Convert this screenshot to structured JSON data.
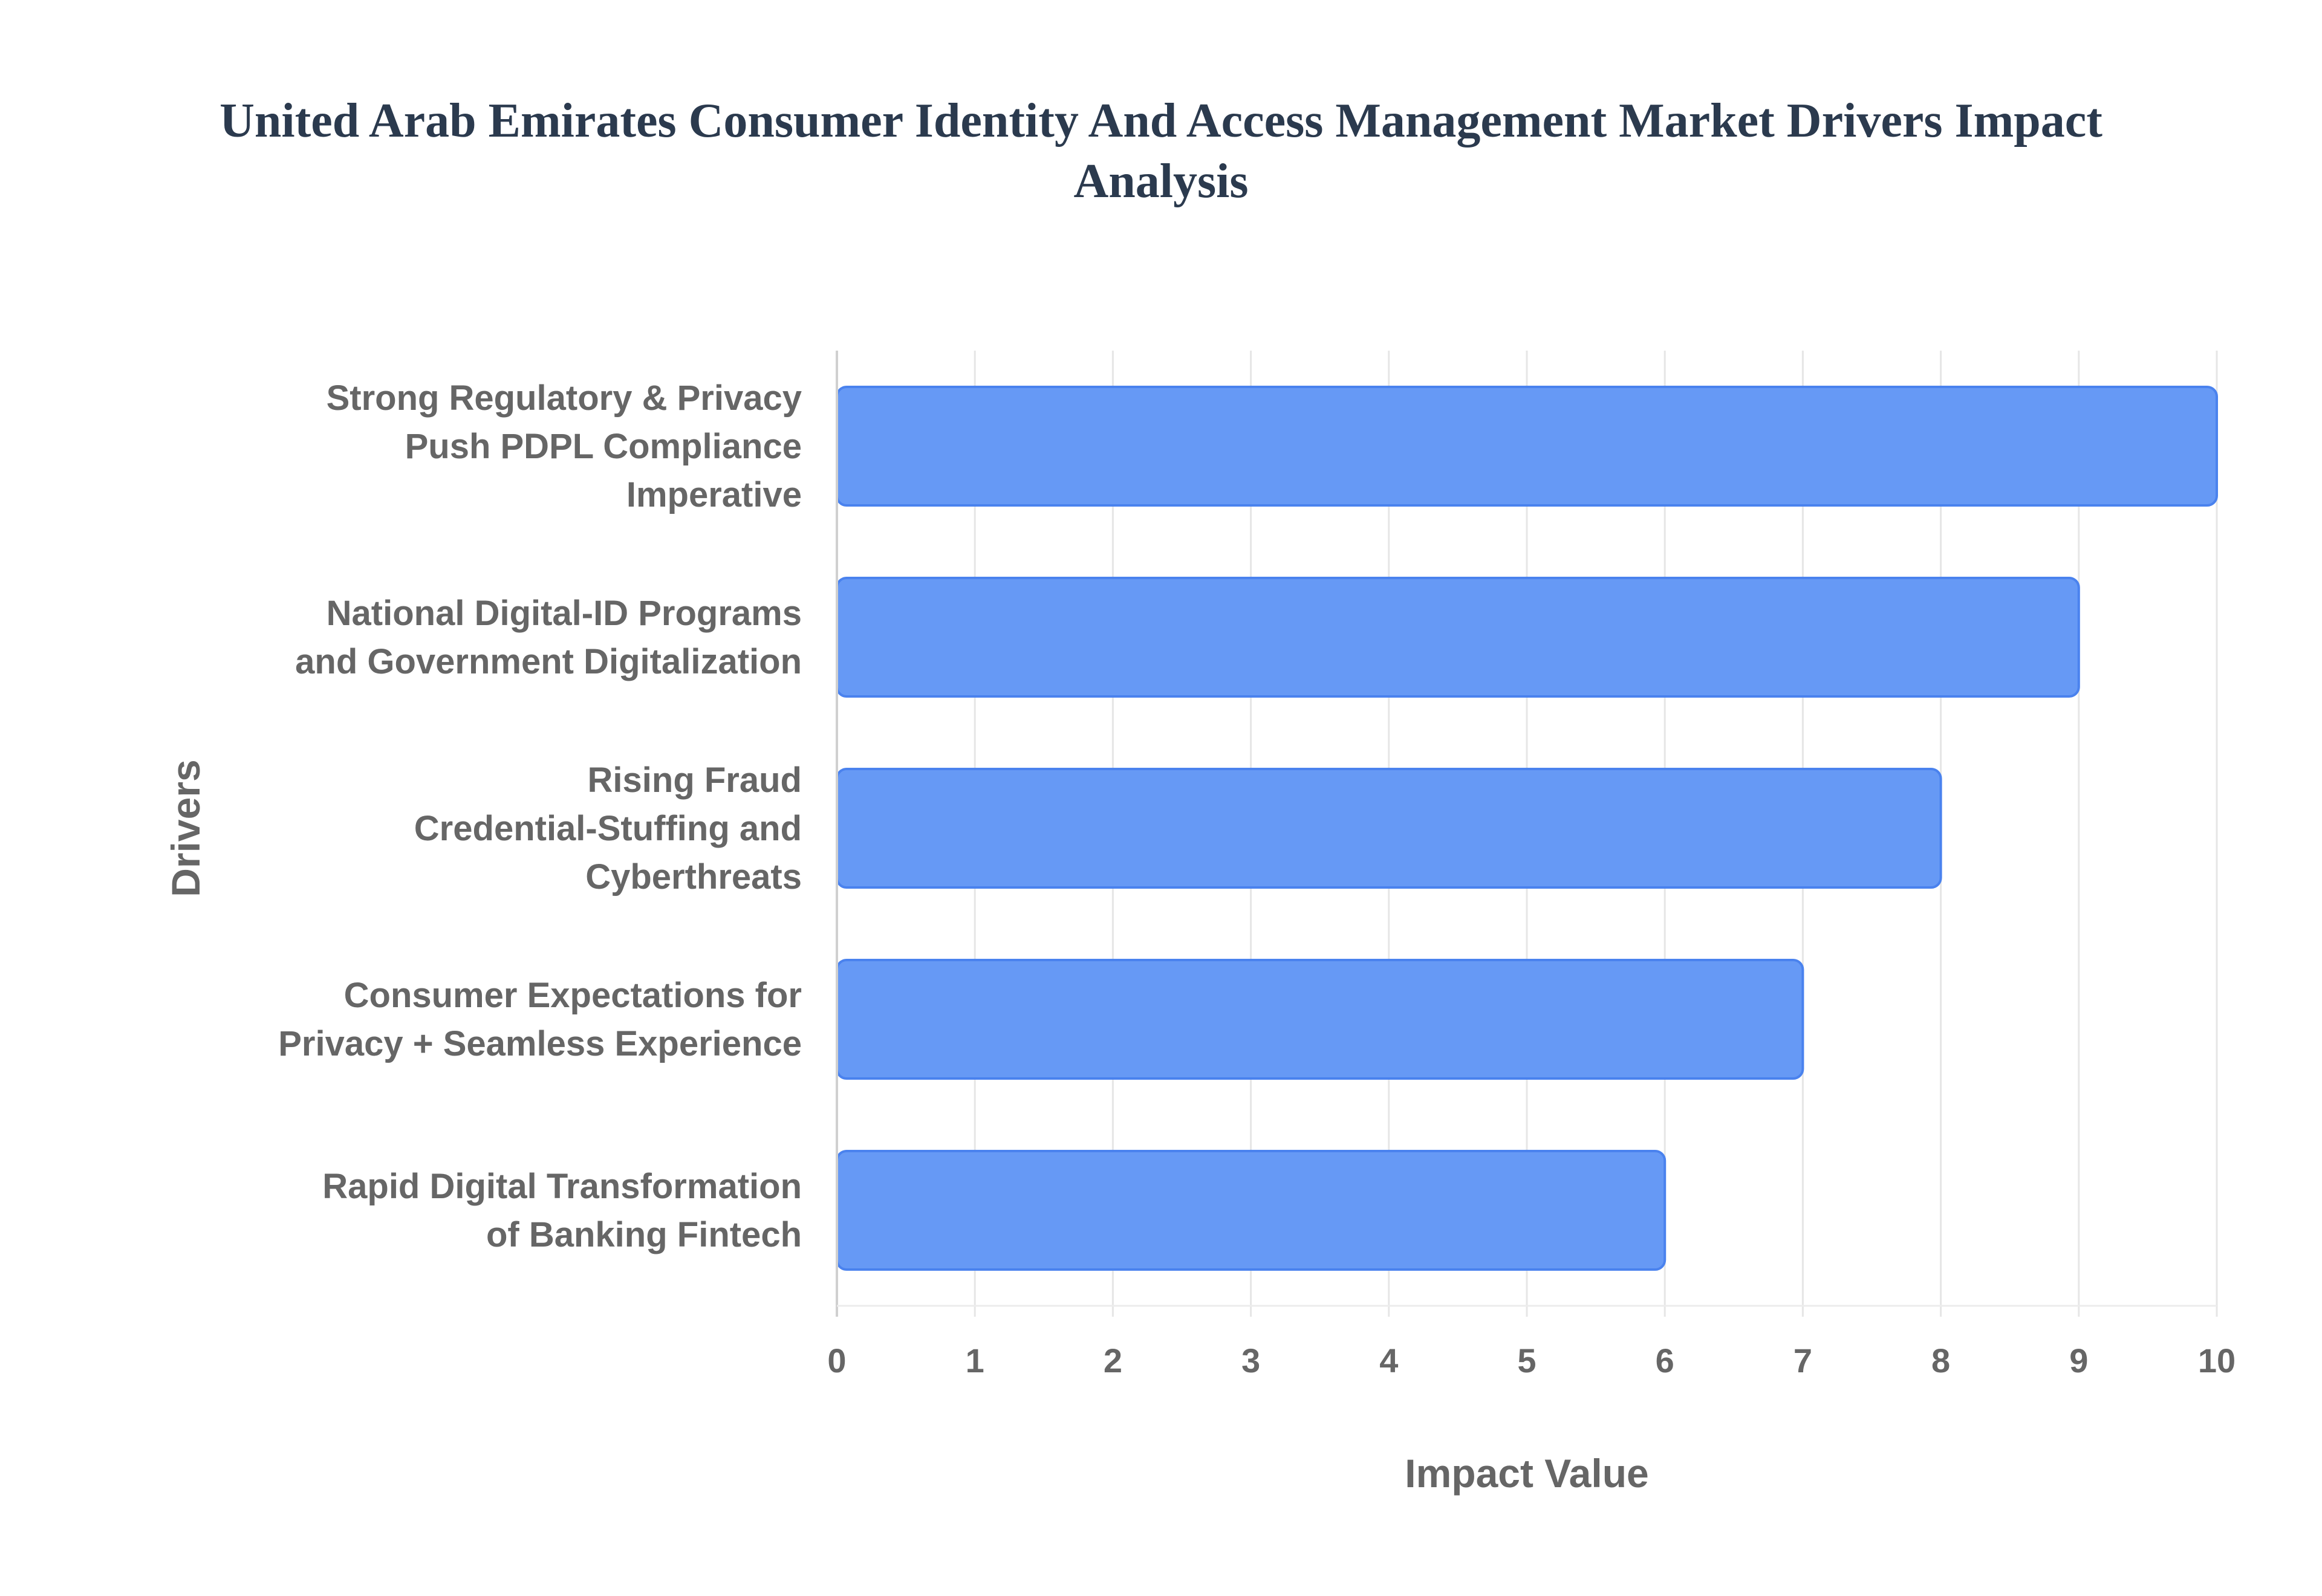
{
  "title_lines": [
    "United Arab Emirates Consumer Identity And Access Management Market Drivers Impact",
    "Analysis"
  ],
  "chart_data": {
    "type": "bar",
    "orientation": "horizontal",
    "title": "United Arab Emirates Consumer Identity And Access Management Market Drivers Impact Analysis",
    "xlabel": "Impact Value",
    "ylabel": "Drivers",
    "xlim": [
      0,
      10
    ],
    "x_ticks": [
      "0",
      "1",
      "2",
      "3",
      "4",
      "5",
      "6",
      "7",
      "8",
      "9",
      "10"
    ],
    "grid": true,
    "bar_color": "#6699f5",
    "bar_edge_color": "#4a82ee",
    "categories": [
      [
        "Strong Regulatory & Privacy",
        "Push PDPL Compliance",
        "Imperative"
      ],
      [
        "National Digital-ID Programs",
        "and Government Digitalization"
      ],
      [
        "Rising Fraud",
        "Credential-Stuffing and",
        "Cyberthreats"
      ],
      [
        "Consumer Expectations for",
        "Privacy + Seamless Experience"
      ],
      [
        "Rapid Digital Transformation",
        "of Banking Fintech"
      ]
    ],
    "values": [
      10,
      9,
      8,
      7,
      6
    ]
  }
}
